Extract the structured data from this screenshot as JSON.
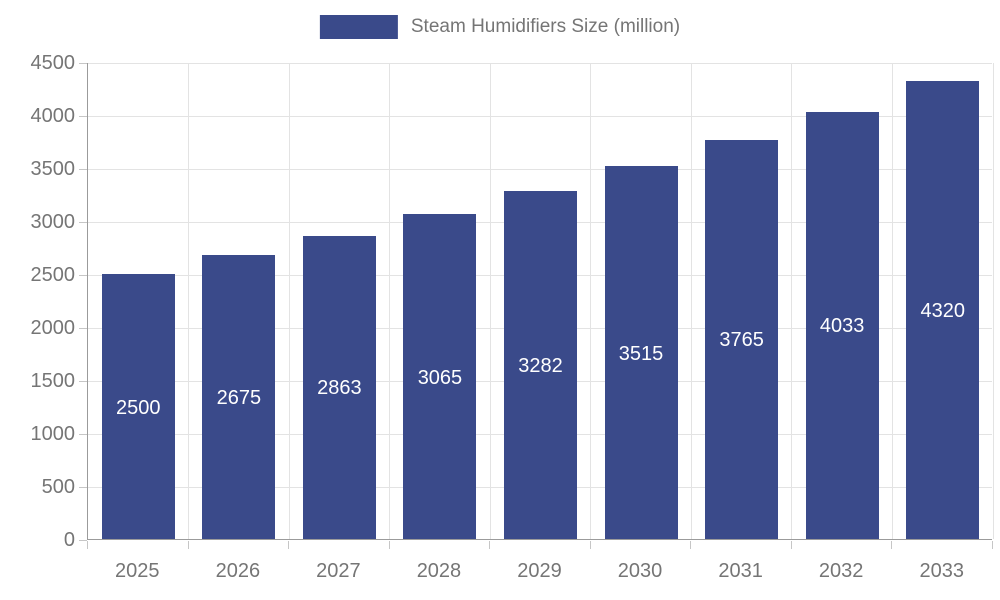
{
  "legend": {
    "label": "Steam Humidifiers Size (million)"
  },
  "chart_data": {
    "type": "bar",
    "title": "",
    "xlabel": "",
    "ylabel": "",
    "categories": [
      "2025",
      "2026",
      "2027",
      "2028",
      "2029",
      "2030",
      "2031",
      "2032",
      "2033"
    ],
    "values": [
      2500,
      2675,
      2863,
      3065,
      3282,
      3515,
      3765,
      4033,
      4320
    ],
    "series_name": "Steam Humidifiers Size (million)",
    "value_labels_shown": true,
    "value_label_position": "inside-center",
    "ylim": [
      0,
      4500
    ],
    "ytick_step": 500,
    "ytick_labels": [
      "0",
      "500",
      "1000",
      "1500",
      "2000",
      "2500",
      "3000",
      "3500",
      "4000",
      "4500"
    ],
    "grid": true,
    "legend_position": "top-center",
    "bar_color": "#3a4a8a",
    "value_label_color": "#ffffff",
    "axis_text_color": "#757575",
    "gridline_color": "#e3e3e3",
    "tick_color": "#c6c6c6",
    "axis_line_color": "#9b9b9b",
    "background_color": "#ffffff"
  }
}
